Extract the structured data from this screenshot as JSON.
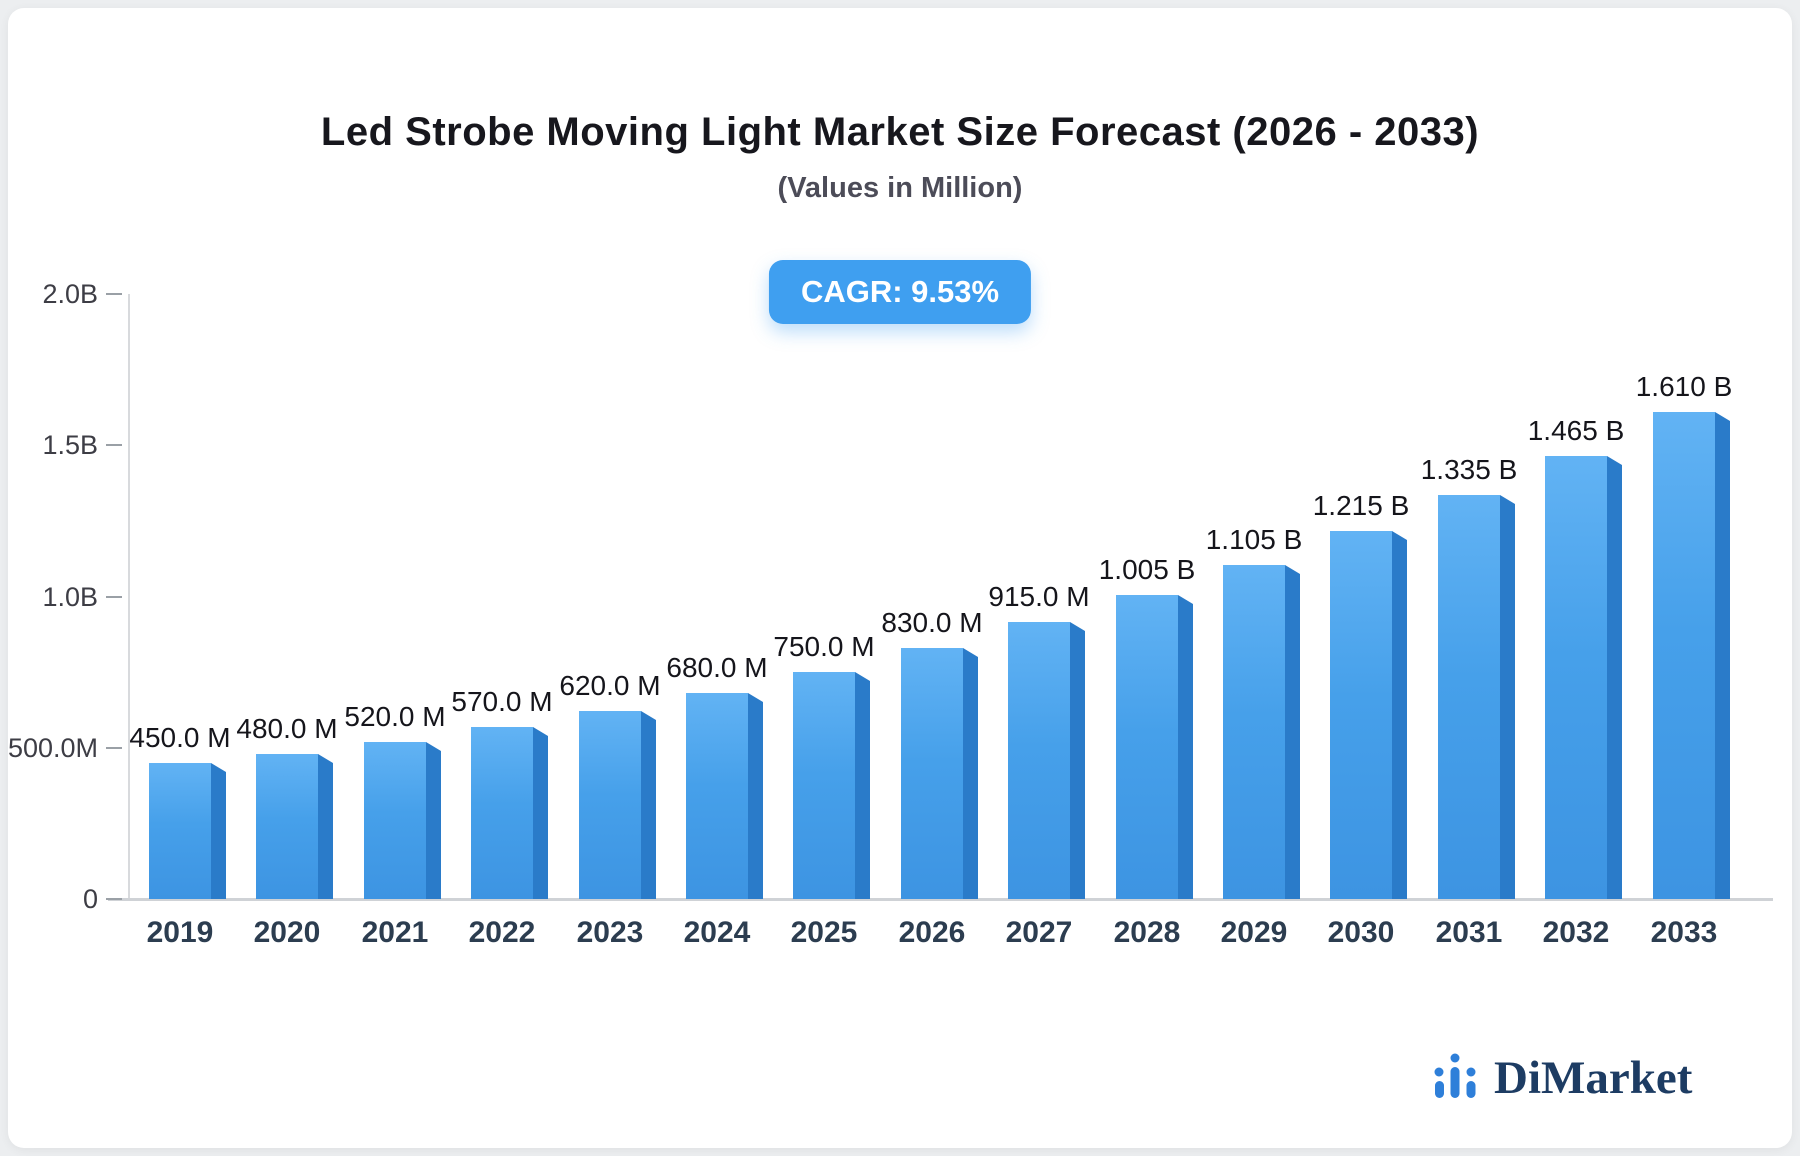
{
  "header": {
    "title": "Led Strobe Moving Light Market Size Forecast (2026 - 2033)",
    "subtitle": "(Values in Million)",
    "cagr_badge": "CAGR: 9.53%"
  },
  "chart_data": {
    "type": "bar",
    "title": "Led Strobe Moving Light Market Size Forecast (2026 - 2033)",
    "subtitle": "(Values in Million)",
    "cagr_percent": 9.53,
    "categories": [
      "2019",
      "2020",
      "2021",
      "2022",
      "2023",
      "2024",
      "2025",
      "2026",
      "2027",
      "2028",
      "2029",
      "2030",
      "2031",
      "2032",
      "2033"
    ],
    "values_millions": [
      450,
      480,
      520,
      570,
      620,
      680,
      750,
      830,
      915,
      1005,
      1105,
      1215,
      1335,
      1465,
      1610
    ],
    "value_labels": [
      "450.0 M",
      "480.0 M",
      "520.0 M",
      "570.0 M",
      "620.0 M",
      "680.0 M",
      "750.0 M",
      "830.0 M",
      "915.0 M",
      "1.005 B",
      "1.105 B",
      "1.215 B",
      "1.335 B",
      "1.465 B",
      "1.610 B"
    ],
    "xlabel": "",
    "ylabel": "",
    "ylim_millions": [
      0,
      2000
    ],
    "yticks": [
      {
        "value": 0,
        "label": "0"
      },
      {
        "value": 500,
        "label": "500.0M"
      },
      {
        "value": 1000,
        "label": "1.0B"
      },
      {
        "value": 1500,
        "label": "1.5B"
      },
      {
        "value": 2000,
        "label": "2.0B"
      }
    ],
    "grid": false,
    "legend": "none",
    "bar_front_color": "#46a0ea",
    "bar_side_color": "#2a7bc9",
    "badge_color": "#3f9ff0"
  },
  "branding": {
    "logo_text": "DiMarket",
    "logo_icon": "bar-chart-dots-icon",
    "logo_color": "#2e7fd9",
    "logo_text_color": "#1d3c63"
  }
}
